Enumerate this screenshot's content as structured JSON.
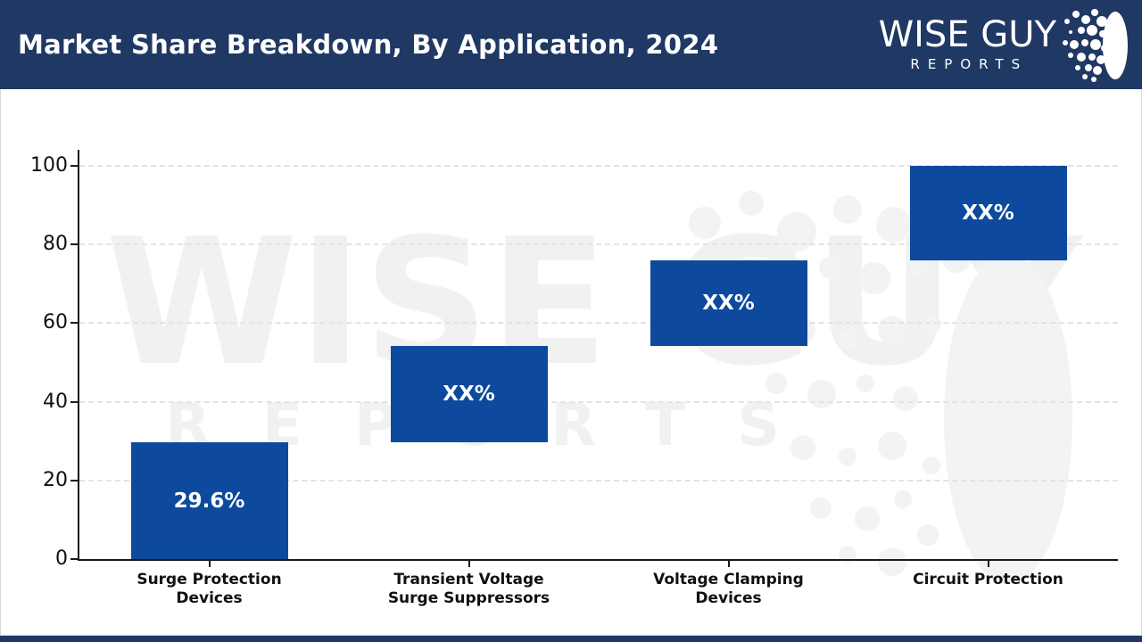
{
  "header": {
    "title": "Market Share Breakdown, By Application, 2024",
    "logo": {
      "line1": "WISE GUY",
      "line2": "REPORTS"
    }
  },
  "watermark": {
    "line1": "WISE GUY",
    "line2": "REPORTS"
  },
  "colors": {
    "header_bg": "#203864",
    "bar": "#0d4a9e",
    "axis": "#1a1a1a",
    "grid": "#e3e3e3",
    "watermark": "#f1f1f1",
    "value_label": "#ffffff"
  },
  "chart_data": {
    "type": "bar",
    "subtype": "waterfall",
    "title": "Market Share Breakdown, By Application, 2024",
    "xlabel": "",
    "ylabel": "",
    "ylim": [
      0,
      100
    ],
    "yticks": [
      0,
      20,
      40,
      60,
      80,
      100
    ],
    "grid": "horizontal-dashed",
    "legend": "none",
    "bar_color": "#0d4a9e",
    "categories": [
      "Surge Protection Devices",
      "Transient Voltage Surge Suppressors",
      "Voltage Clamping Devices",
      "Circuit Protection"
    ],
    "bars": [
      {
        "category": "Surge Protection Devices",
        "category_lines": [
          "Surge Protection",
          "Devices"
        ],
        "start": 0,
        "end": 29.6,
        "value": 29.6,
        "value_label": "29.6%"
      },
      {
        "category": "Transient Voltage Surge Suppressors",
        "category_lines": [
          "Transient Voltage",
          "Surge Suppressors"
        ],
        "start": 29.6,
        "end": 54.2,
        "value": 24.6,
        "value_label": "XX%"
      },
      {
        "category": "Voltage Clamping Devices",
        "category_lines": [
          "Voltage Clamping",
          "Devices"
        ],
        "start": 54.2,
        "end": 76.0,
        "value": 21.8,
        "value_label": "XX%"
      },
      {
        "category": "Circuit Protection",
        "category_lines": [
          "Circuit Protection"
        ],
        "start": 76.0,
        "end": 100.0,
        "value": 24.0,
        "value_label": "XX%"
      }
    ]
  }
}
